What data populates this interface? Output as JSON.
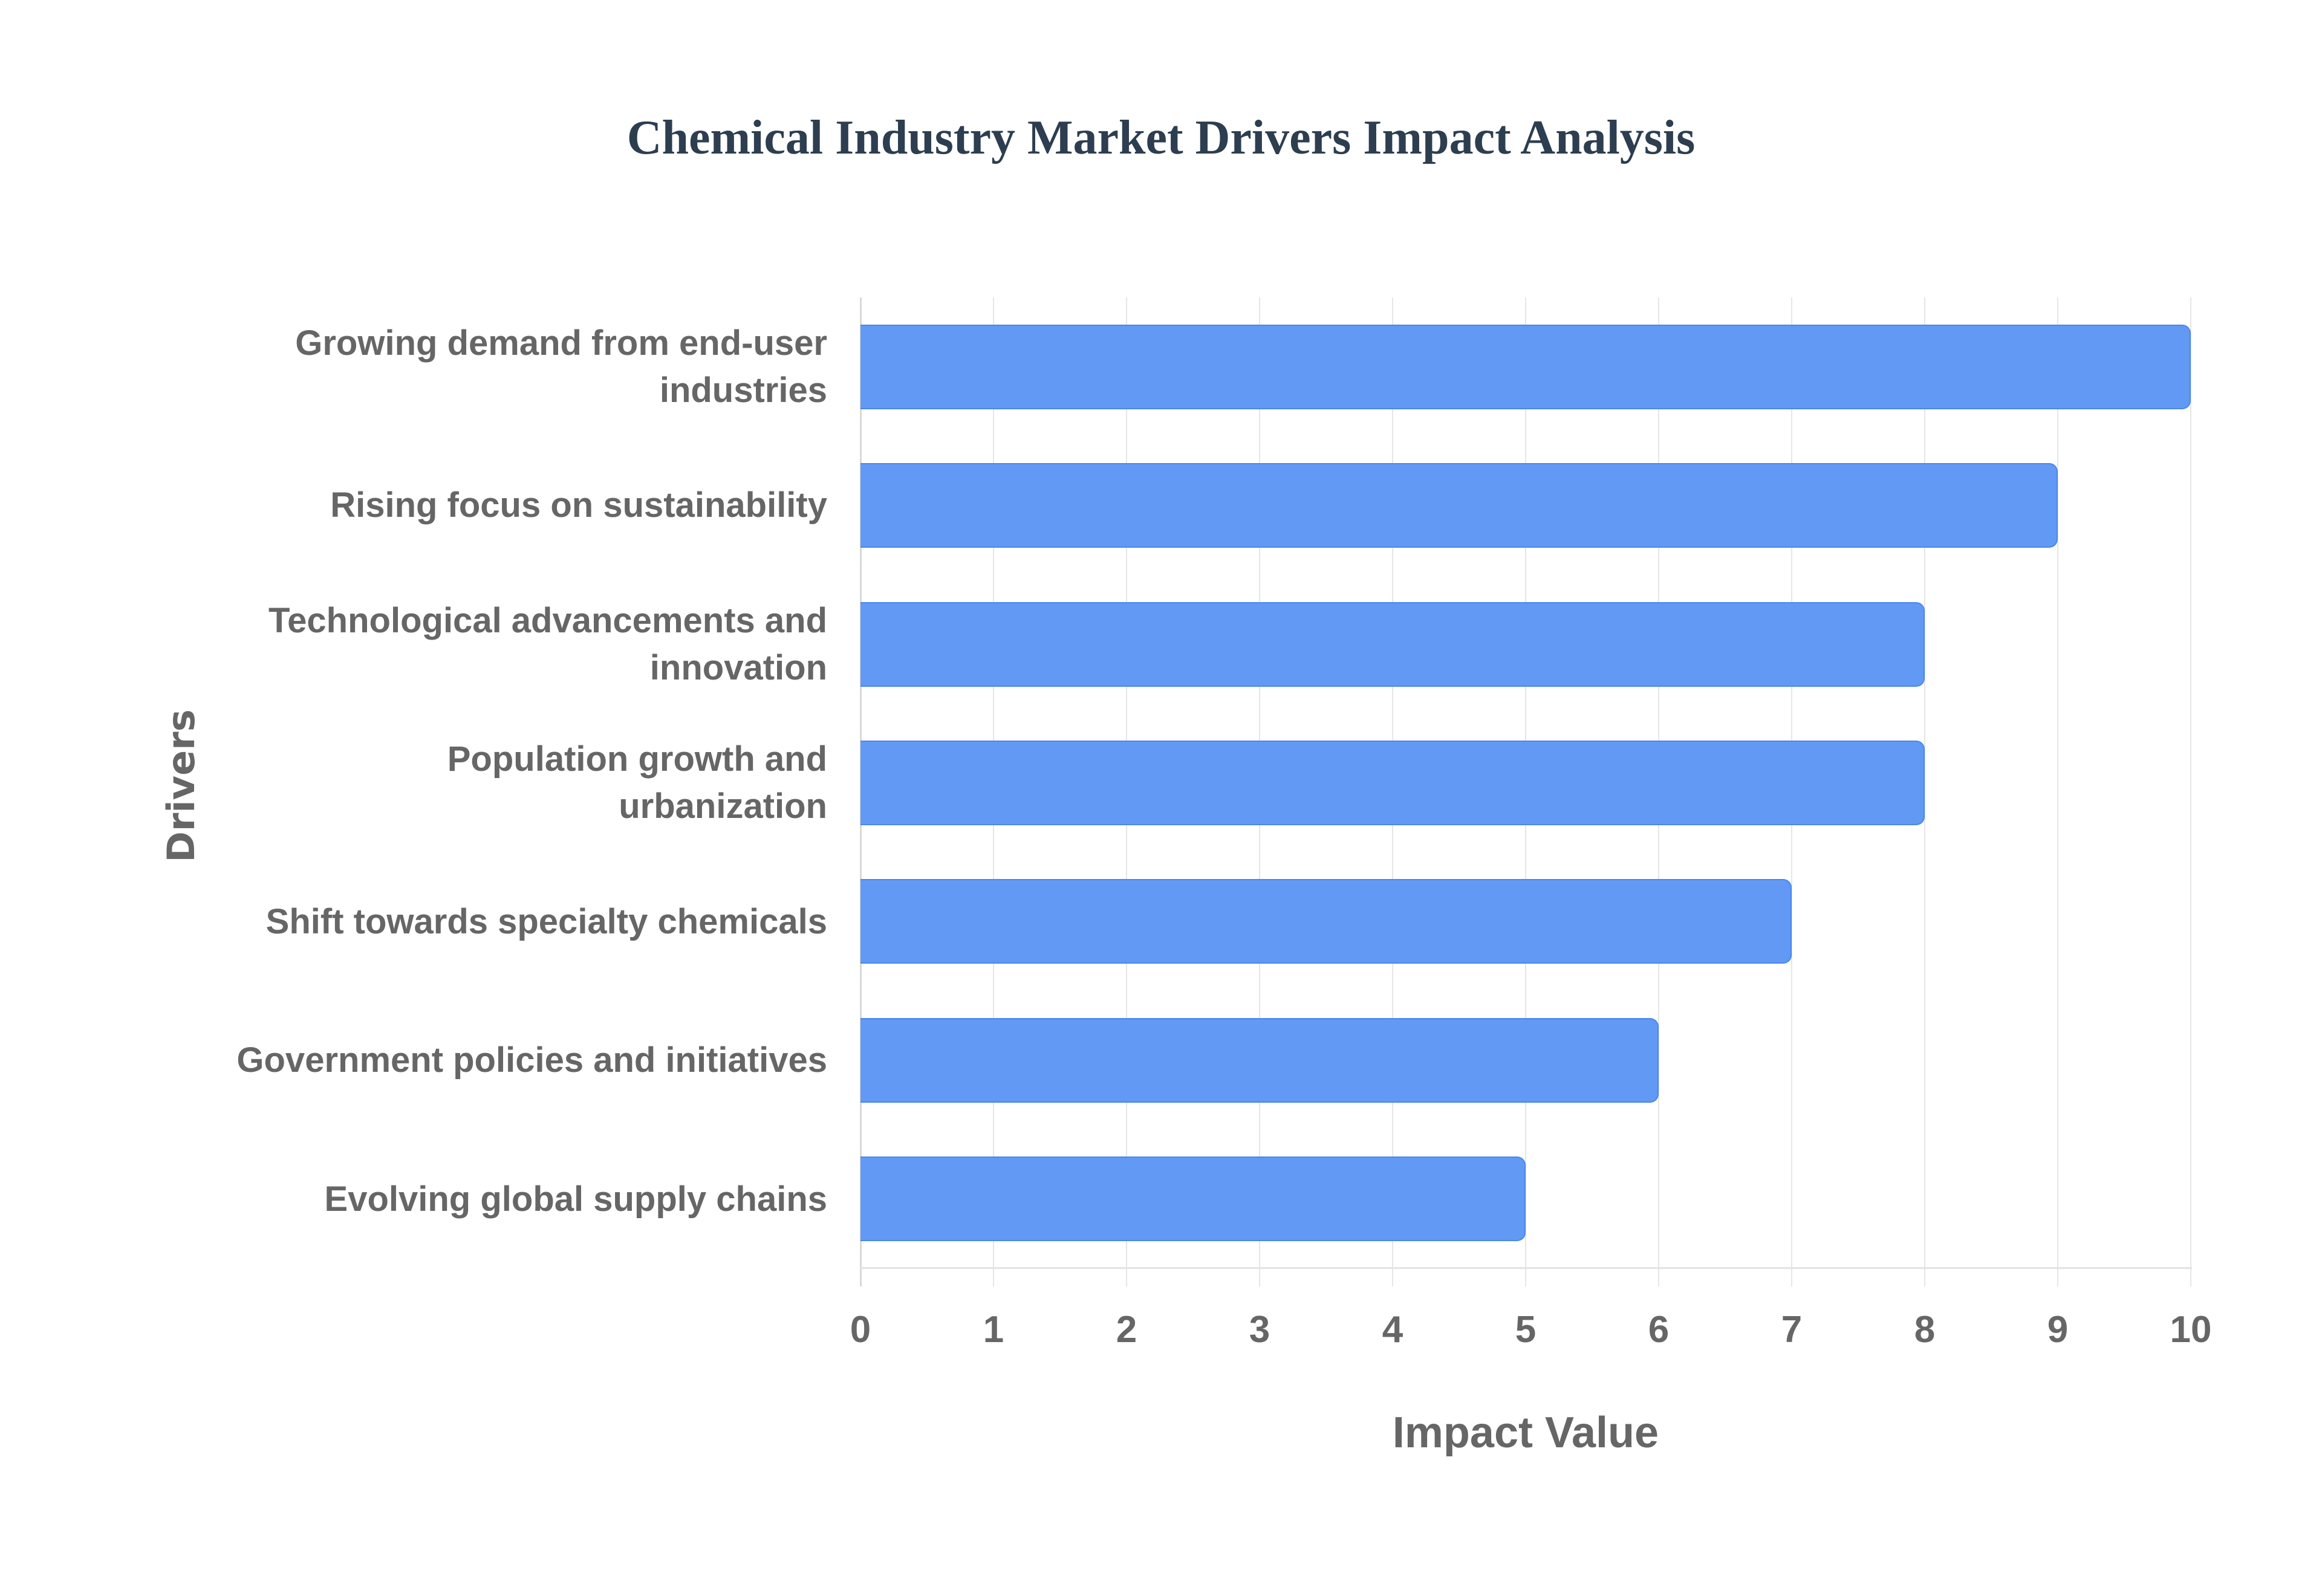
{
  "chart_data": {
    "type": "bar",
    "orientation": "horizontal",
    "title": "Chemical Industry Market Drivers Impact Analysis",
    "xlabel": "Impact Value",
    "ylabel": "Drivers",
    "categories": [
      "Growing demand from end-user industries",
      "Rising focus on sustainability",
      "Technological advancements and innovation",
      "Population growth and urbanization",
      "Shift towards specialty chemicals",
      "Government policies and initiatives",
      "Evolving global supply chains"
    ],
    "values": [
      10,
      9,
      8,
      8,
      7,
      6,
      5
    ],
    "xlim": [
      0,
      10
    ],
    "xticks": [
      "0",
      "1",
      "2",
      "3",
      "4",
      "5",
      "6",
      "7",
      "8",
      "9",
      "10"
    ],
    "grid": true,
    "legend": null,
    "colors": {
      "bar_fill": "#6299f4",
      "bar_border": "#4a86ee",
      "title": "#2c3e50",
      "text": "#666666",
      "grid": "#e6e6e6"
    }
  },
  "labels": {
    "title": "Chemical Industry Market Drivers Impact Analysis",
    "x_axis_title": "Impact Value",
    "y_axis_title": "Drivers"
  }
}
